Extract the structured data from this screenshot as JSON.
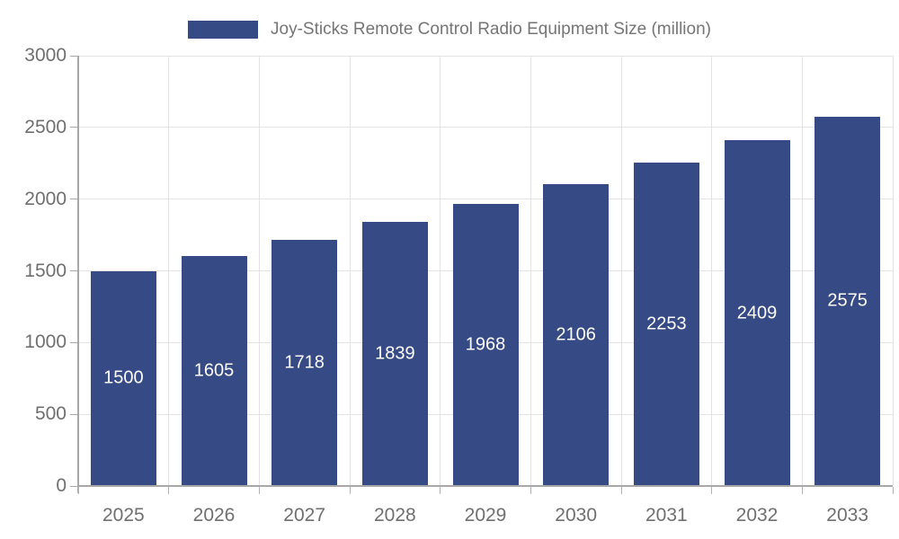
{
  "legend": {
    "label": "Joy-Sticks Remote Control Radio Equipment Size (million)"
  },
  "colors": {
    "bar": "#364A85",
    "grid": "#e3e3e3",
    "axis": "#a8a8a8",
    "tick": "#b3b3b3",
    "tick_text": "#6f6f6f",
    "legend_text": "#757575",
    "value_label": "#ffffff"
  },
  "chart_data": {
    "type": "bar",
    "title": "Joy-Sticks Remote Control Radio Equipment Size (million)",
    "categories": [
      "2025",
      "2026",
      "2027",
      "2028",
      "2029",
      "2030",
      "2031",
      "2032",
      "2033"
    ],
    "values": [
      1500,
      1605,
      1718,
      1839,
      1968,
      2106,
      2253,
      2409,
      2575
    ],
    "series": [
      {
        "name": "Joy-Sticks Remote Control Radio Equipment Size (million)",
        "values": [
          1500,
          1605,
          1718,
          1839,
          1968,
          2106,
          2253,
          2409,
          2575
        ]
      }
    ],
    "xlabel": "",
    "ylabel": "",
    "ylim": [
      0,
      3000
    ],
    "yticks": [
      0,
      500,
      1000,
      1500,
      2000,
      2500,
      3000
    ],
    "grid": true,
    "legend_position": "top",
    "value_labels": "inside-center"
  }
}
